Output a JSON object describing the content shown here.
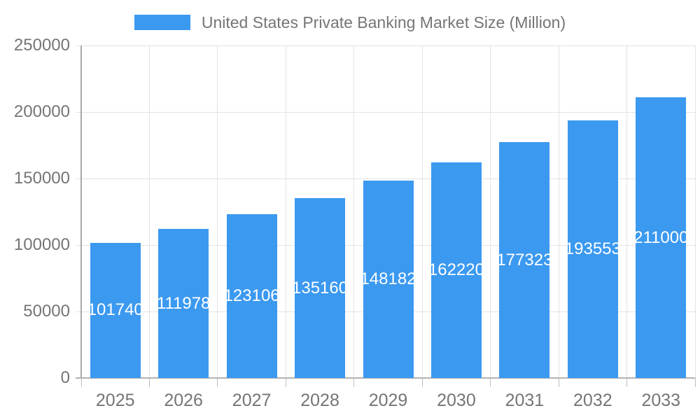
{
  "chart_data": {
    "type": "bar",
    "title": "United States Private Banking Market Size (Million)",
    "legend": [
      "United States Private Banking Market Size (Million)"
    ],
    "legend_position": "top-center",
    "categories": [
      "2025",
      "2026",
      "2027",
      "2028",
      "2029",
      "2030",
      "2031",
      "2032",
      "2033"
    ],
    "values": [
      101740,
      111978,
      123106,
      135160,
      148182,
      162220,
      177323,
      193553,
      211000
    ],
    "bar_value_labels": [
      "101740",
      "111978",
      "123106",
      "135160",
      "148182",
      "162220",
      "177323",
      "193553",
      "211000"
    ],
    "xlabel": "",
    "ylabel": "",
    "ylim": [
      0,
      250000
    ],
    "ytick_step": 50000,
    "ytick_labels": [
      "0",
      "50000",
      "100000",
      "150000",
      "200000",
      "250000"
    ],
    "grid": true,
    "value_label_position": "inside-center",
    "colors": {
      "bar": "#3b99f0",
      "bar_label_text": "#ffffff",
      "axis_text": "#757575",
      "grid_line": "#e3e3e3",
      "y_axis_line": "#a8a8a8",
      "x_axis_line": "#b3b3b3",
      "background": "#ffffff"
    }
  }
}
